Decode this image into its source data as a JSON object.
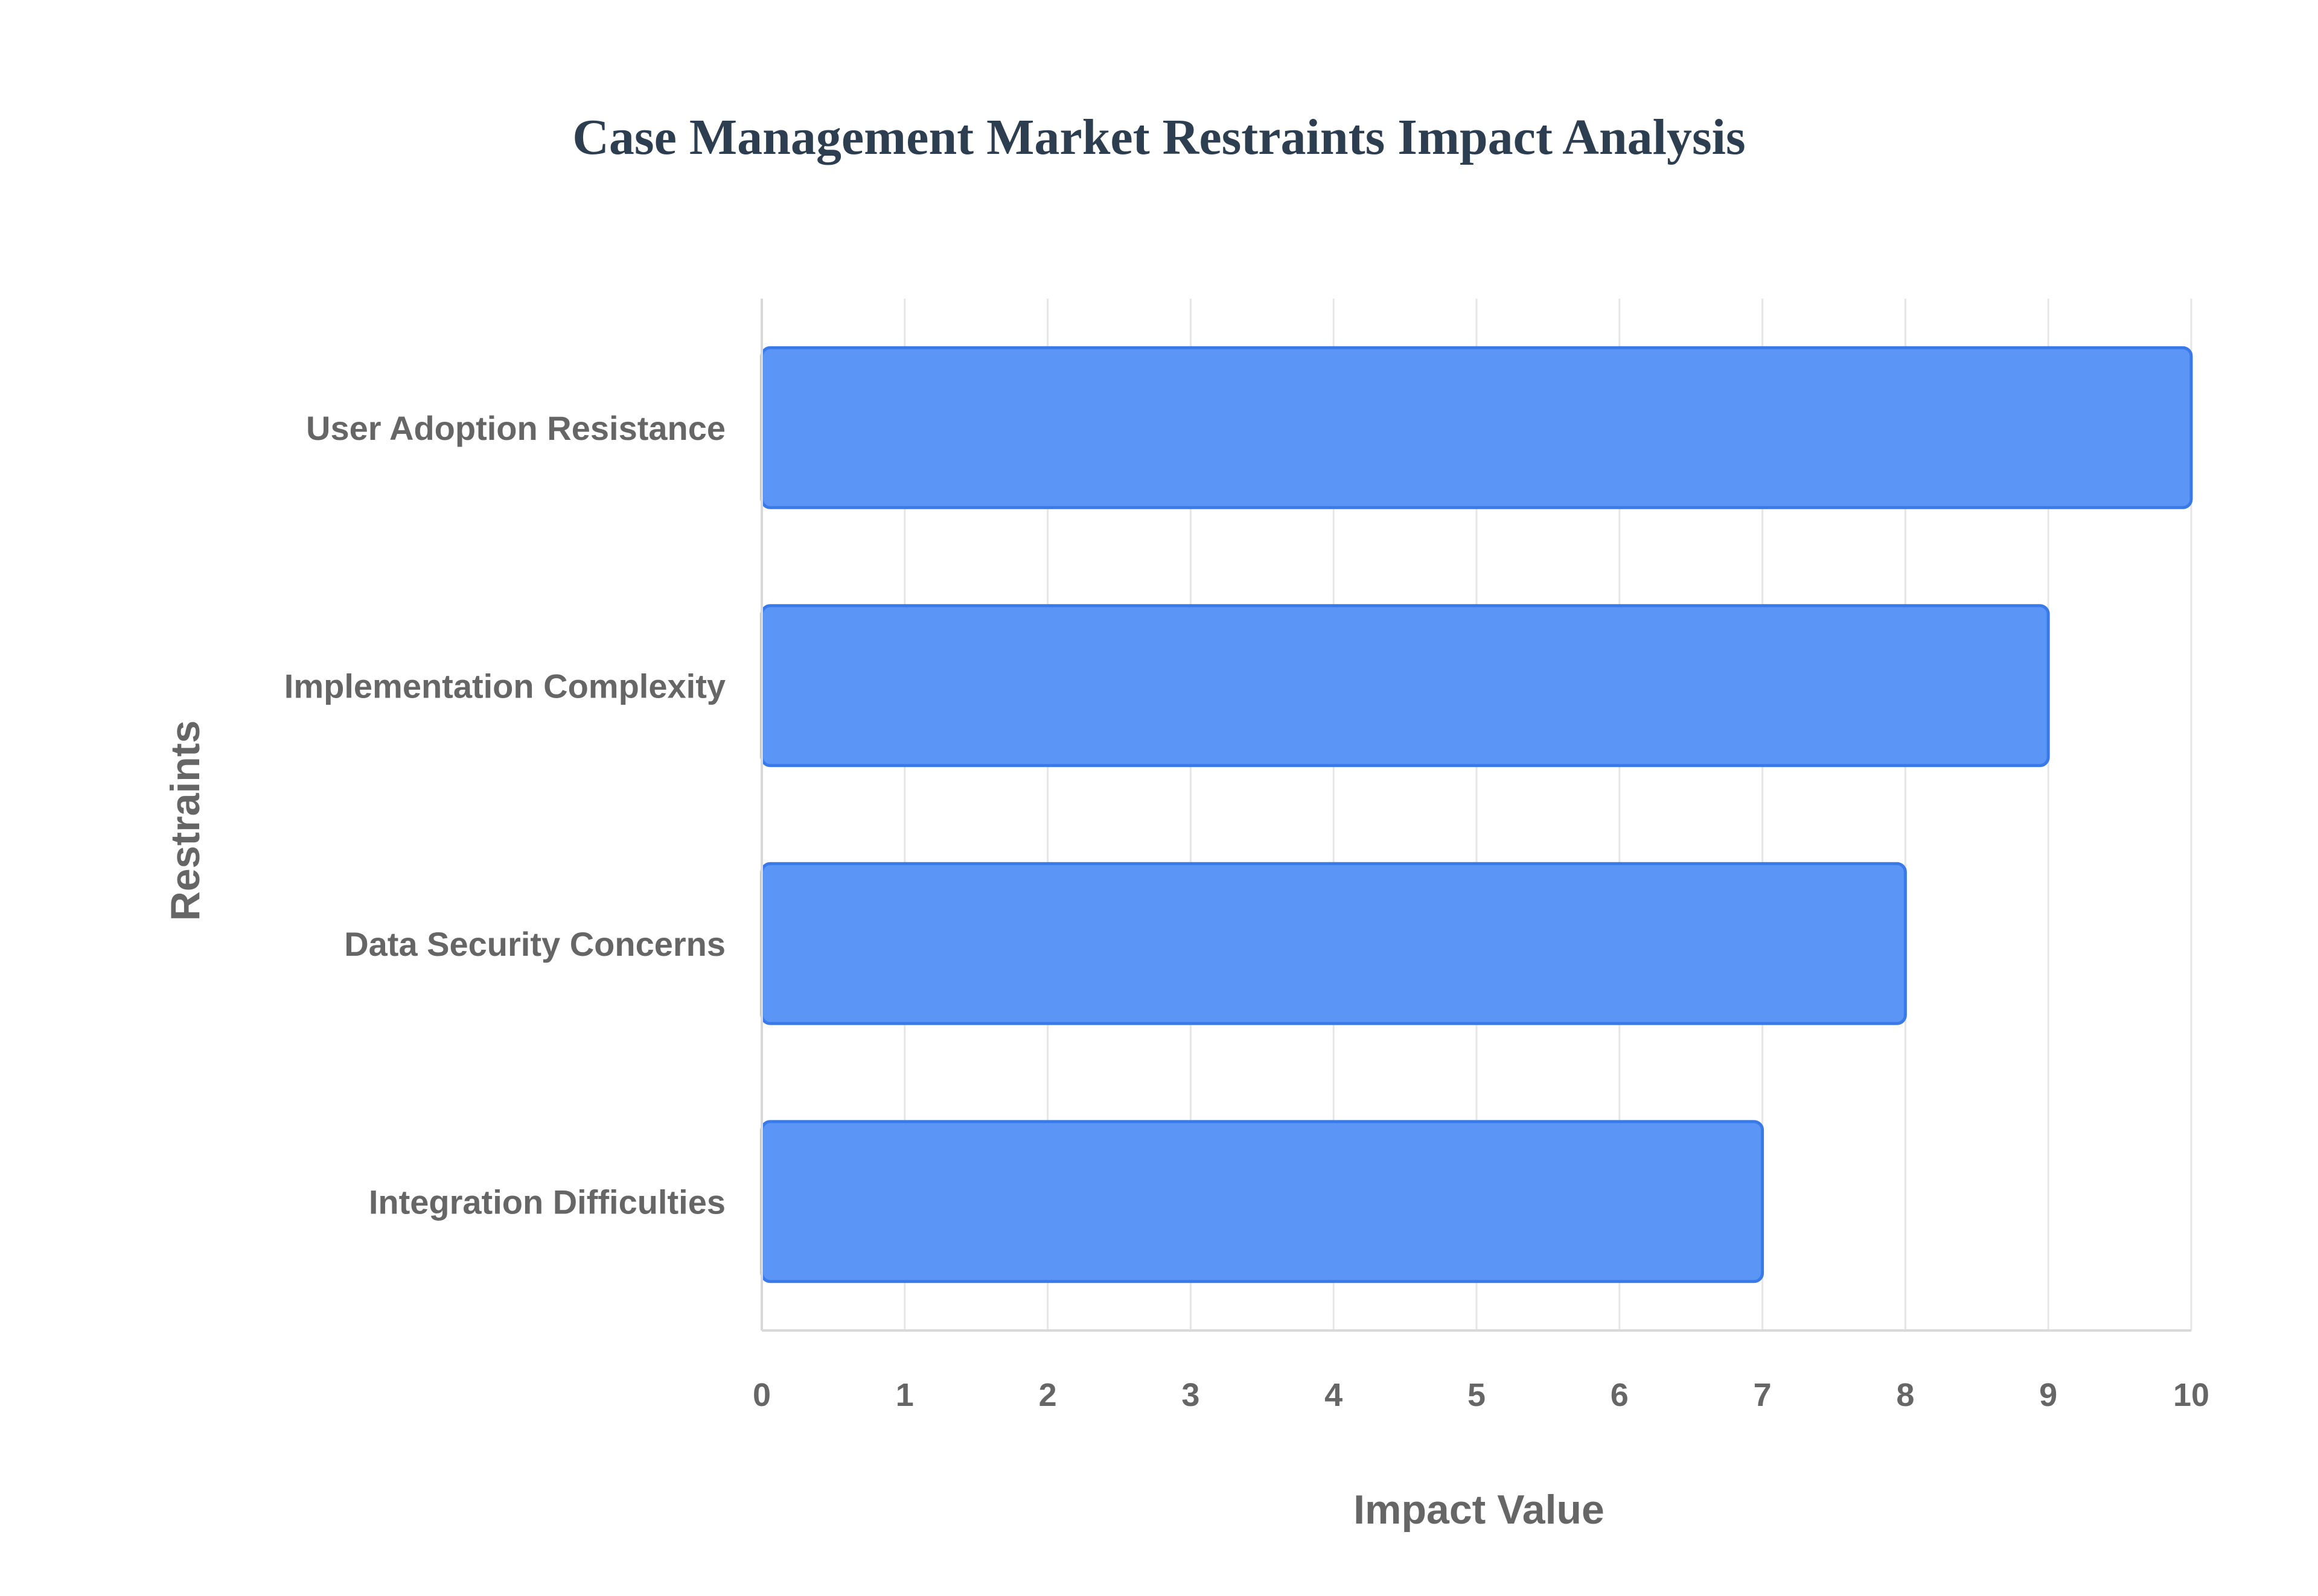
{
  "chart_data": {
    "type": "bar",
    "orientation": "horizontal",
    "title": "Case Management Market Restraints Impact Analysis",
    "xlabel": "Impact Value",
    "ylabel": "Restraints",
    "categories": [
      "User Adoption Resistance",
      "Implementation Complexity",
      "Data Security Concerns",
      "Integration Difficulties"
    ],
    "values": [
      10,
      9,
      8,
      7
    ],
    "xlim": [
      0,
      10
    ],
    "x_ticks": [
      "0",
      "1",
      "2",
      "3",
      "4",
      "5",
      "6",
      "7",
      "8",
      "9",
      "10"
    ],
    "grid": true,
    "legend": "none",
    "colors": {
      "bar_fill": "#5b95f5",
      "bar_stroke": "#3a7ae8",
      "title": "#2c3e50",
      "text": "#666666"
    }
  }
}
